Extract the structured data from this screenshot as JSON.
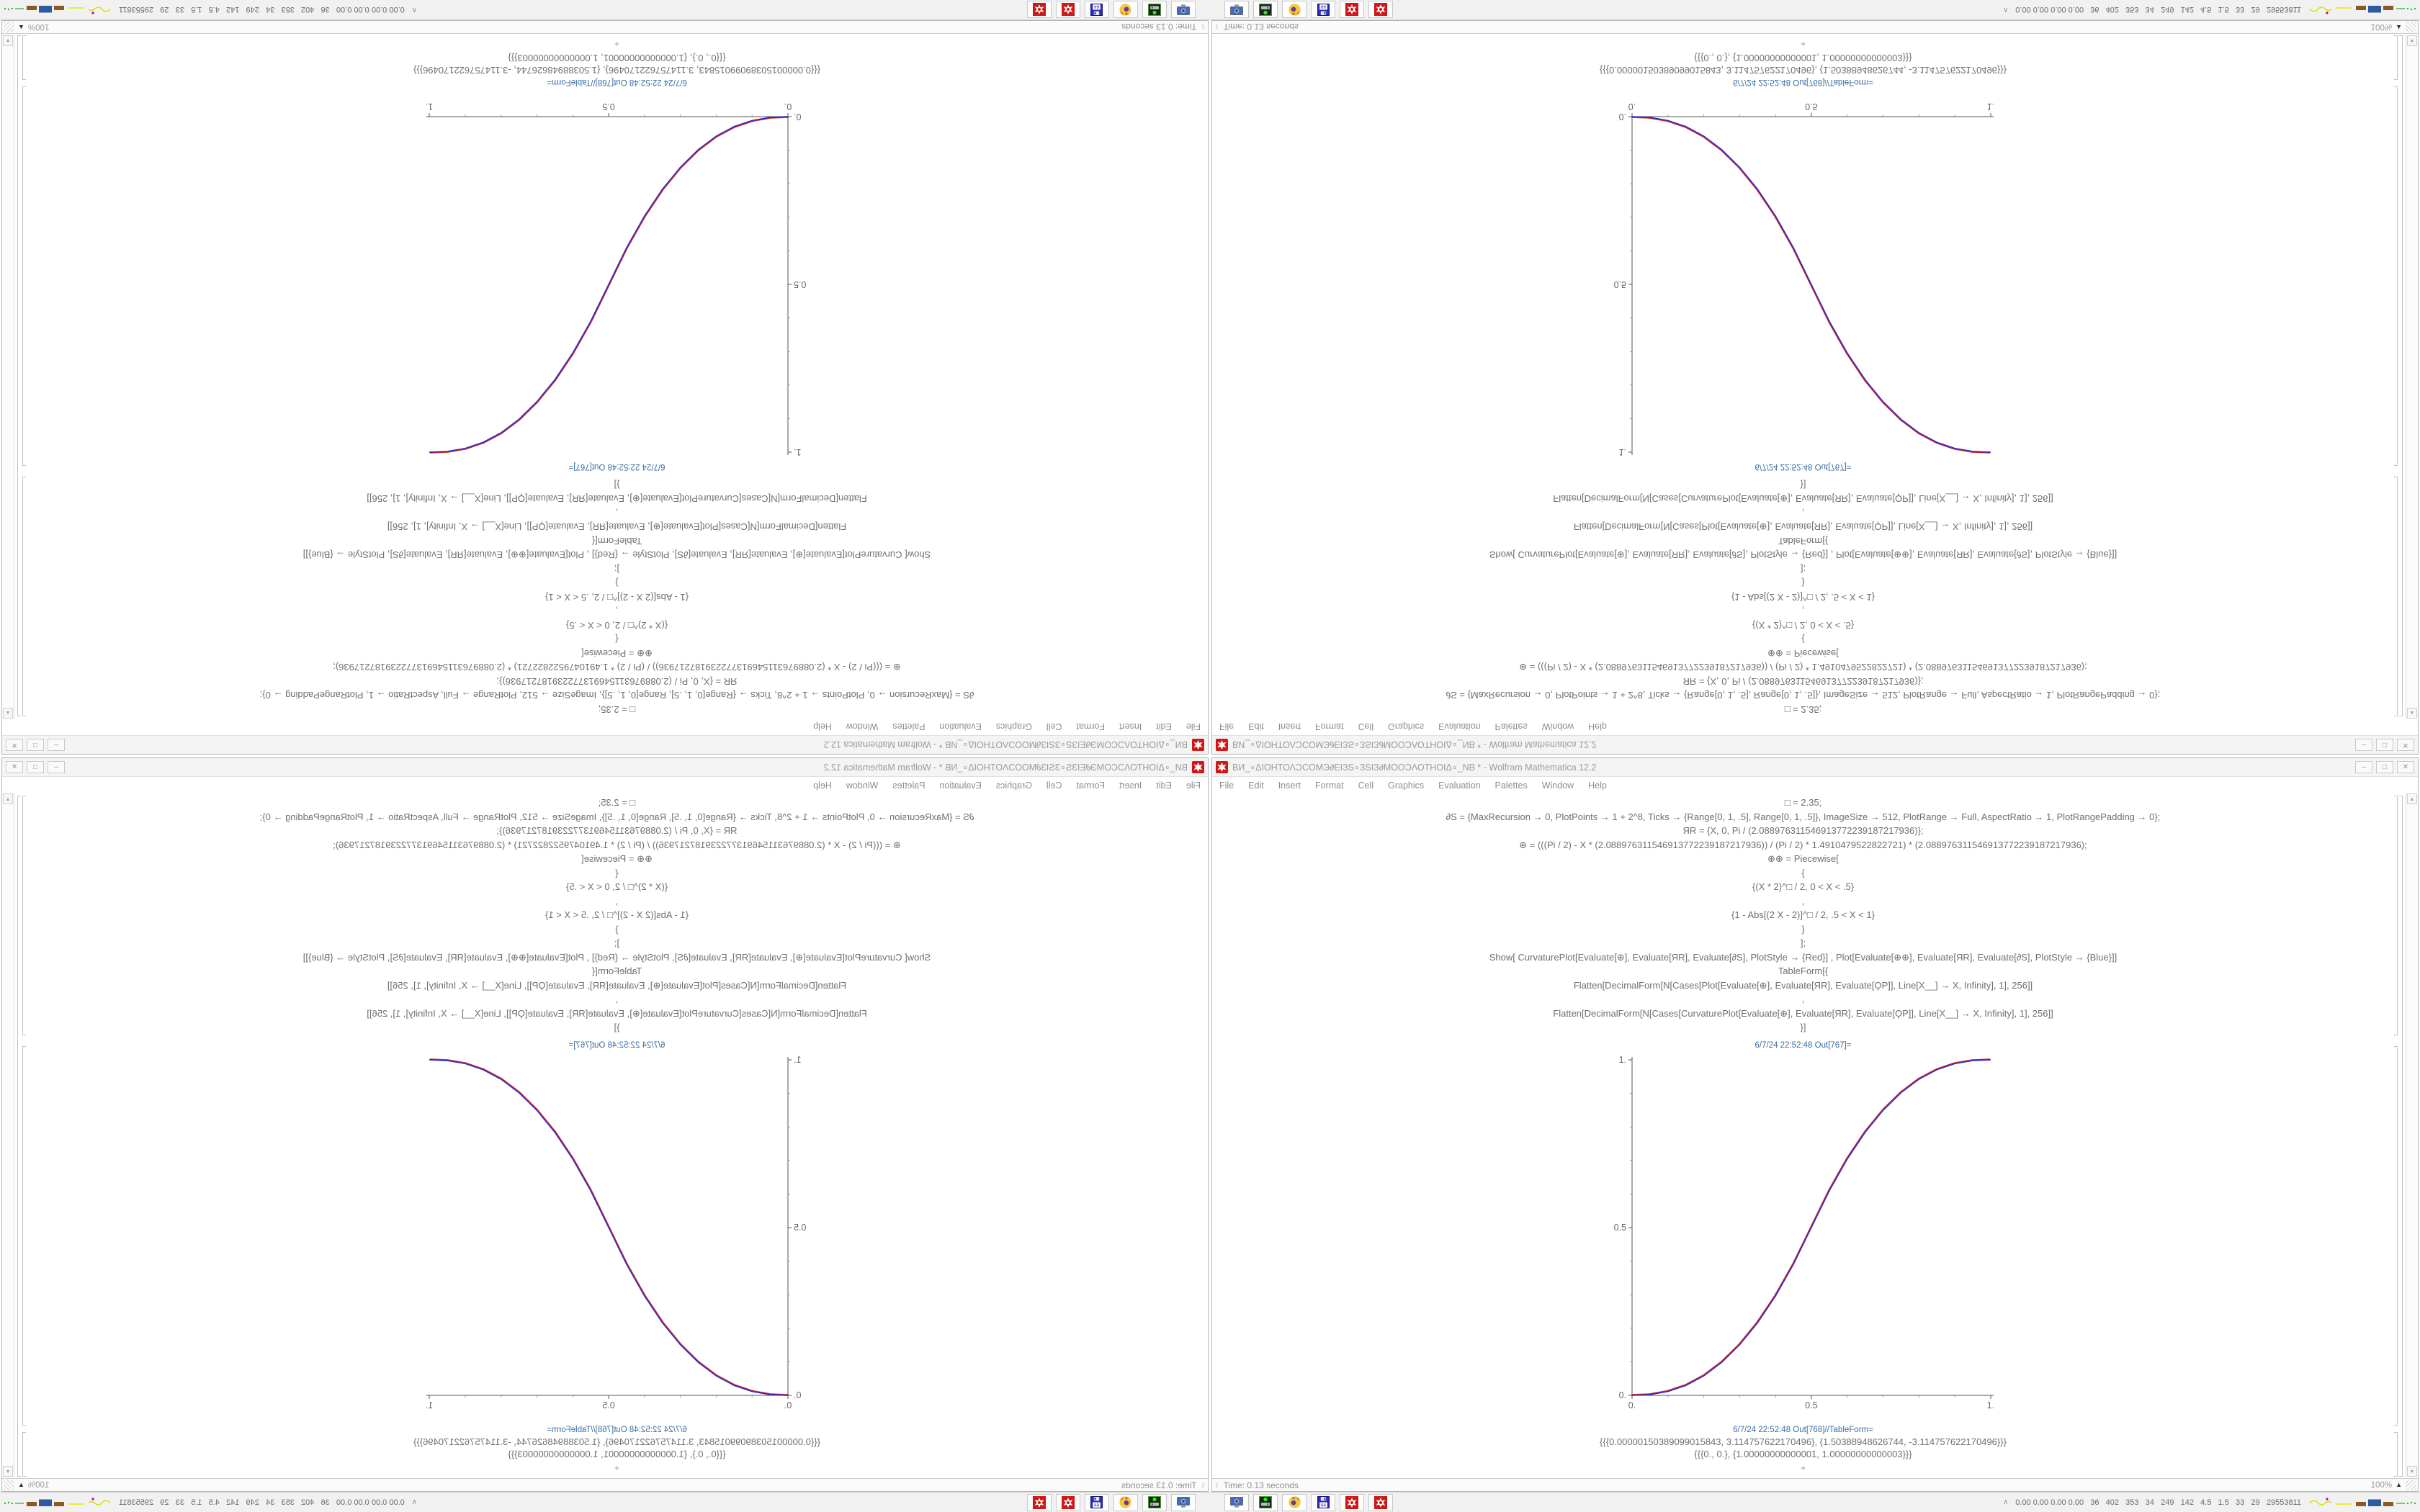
{
  "window": {
    "title": "ВИ_∘ΔΙΟΗΤΟΛϽCOMЭ∂ΕΙЗS∘ЗSΙЗ∂MOOϽΛΟΤΗΟΙΔ∘_NB * - Wolfram Mathematica 12.2",
    "controls": {
      "minimize": "–",
      "maximize": "□",
      "close": "✕"
    },
    "menu": [
      "File",
      "Edit",
      "Insert",
      "Format",
      "Cell",
      "Graphics",
      "Evaluation",
      "Palettes",
      "Window",
      "Help"
    ],
    "input_lines": [
      "□ = 2.35;",
      "∂S = {MaxRecursion → 0, PlotPoints → 1 + 2^8, Ticks → {Range[0, 1, .5], Range[0, 1, .5]}, ImageSize → 512, PlotRange → Full, AspectRatio → 1, PlotRangePadding → 0};",
      "ЯR = {X, 0, Pi / (2.088976311546913772239187217936)};",
      "⊕ = (((Pi / 2) - X * (2.088976311546913772239187217936)) / (Pi / 2) * 1.4910479522822721) * (2.088976311546913772239187217936);",
      "⊕⊕ = Piecewise[",
      "{",
      "{(X * 2)^□ / 2, 0 < X < .5}",
      ",",
      "{1 - Abs[(2 X - 2)]^□ / 2, .5 < X < 1}",
      "}",
      "];",
      "Show[  CurvaturePlot[Evaluate[⊕], Evaluate[ЯR], Evaluate[∂S], PlotStyle → {Red}]  ,  Plot[Evaluate[⊕⊕], Evaluate[ЯR], Evaluate[∂S],  PlotStyle → {Blue}]]",
      "TableForm[{",
      "Flatten[DecimalForm[N[Cases[Plot[Evaluate[⊕], Evaluate[ЯR], Evaluate[ϘP]], Line[X__] → X, Infinity], 1], 256]]",
      ",",
      "Flatten[DecimalForm[N[Cases[CurvaturePlot[Evaluate[⊕], Evaluate[ЯR], Evaluate[ϘP]], Line[X__] → X, Infinity], 1], 256]]",
      "}]"
    ],
    "out1_label": "6/7/24 22:52:48 Out[767]=",
    "out2_label": "6/7/24 22:52:48 Out[768]//TableForm=",
    "table_rows": [
      "{{{0.00000150389099015843, 3.114757622170496}, {1.50388948626744, -3.114757622170496}}}",
      "{{{0., 0.}, {1.00000000000001, 1.00000000000003}}}"
    ],
    "insert_marker": "+",
    "scrollbar": {
      "up": "▴",
      "down": "▾"
    },
    "status": {
      "time": "Time: 0.13 seconds",
      "zoom": "100%",
      "zoom_arrow": "▲"
    }
  },
  "chart_data": {
    "type": "line",
    "title": "",
    "xlabel": "",
    "ylabel": "",
    "xlim": [
      0,
      1
    ],
    "ylim": [
      0,
      1
    ],
    "xticks": {
      "values": [
        0,
        0.5,
        1
      ],
      "labels": [
        "0.",
        "0.5",
        "1."
      ]
    },
    "yticks": {
      "values": [
        0,
        0.5,
        1
      ],
      "labels": [
        "0.",
        "0.5",
        "1."
      ]
    },
    "minor_tick_step": 0.1,
    "grid": false,
    "axes": "left-bottom",
    "x": [
      0,
      0.05,
      0.1,
      0.15,
      0.2,
      0.25,
      0.3,
      0.35,
      0.4,
      0.45,
      0.5,
      0.55,
      0.6,
      0.65,
      0.7,
      0.75,
      0.8,
      0.85,
      0.9,
      0.95,
      1
    ],
    "series": [
      {
        "name": "CurvaturePlot (Red)",
        "color": "#cc2222",
        "values": [
          0,
          0.0022,
          0.0114,
          0.0295,
          0.058,
          0.098,
          0.1506,
          0.2162,
          0.296,
          0.3903,
          0.5,
          0.6097,
          0.704,
          0.7838,
          0.8494,
          0.902,
          0.942,
          0.9705,
          0.9886,
          0.9978,
          1
        ]
      },
      {
        "name": "Plot (Blue)",
        "color": "#2222cc",
        "values": [
          0,
          0.0022,
          0.0114,
          0.0295,
          0.058,
          0.098,
          0.1506,
          0.2162,
          0.296,
          0.3903,
          0.5,
          0.6097,
          0.704,
          0.7838,
          0.8494,
          0.902,
          0.942,
          0.9705,
          0.9886,
          0.9978,
          1
        ]
      }
    ]
  },
  "taskbar": {
    "apps": [
      {
        "name": "screenshot-tool",
        "label": ""
      },
      {
        "name": "drive-vm",
        "label": ""
      },
      {
        "name": "firefox",
        "label": ""
      },
      {
        "name": "floppy-64",
        "label": "64"
      },
      {
        "name": "mathematica-window-1",
        "label": ""
      },
      {
        "name": "mathematica-window-2",
        "label": ""
      }
    ],
    "tray": {
      "chevron": "∧",
      "text": "0.00 0.00 0.00 0.00   36   402   353   34   249   142   4.5   1.5   33   29   29553811"
    }
  },
  "colors": {
    "curve_red": "#cc2222",
    "curve_blue": "#2222cc",
    "out_label_blue": "#3a6ea5",
    "app_icon_red": "#cf1717",
    "axis": "#555555"
  }
}
